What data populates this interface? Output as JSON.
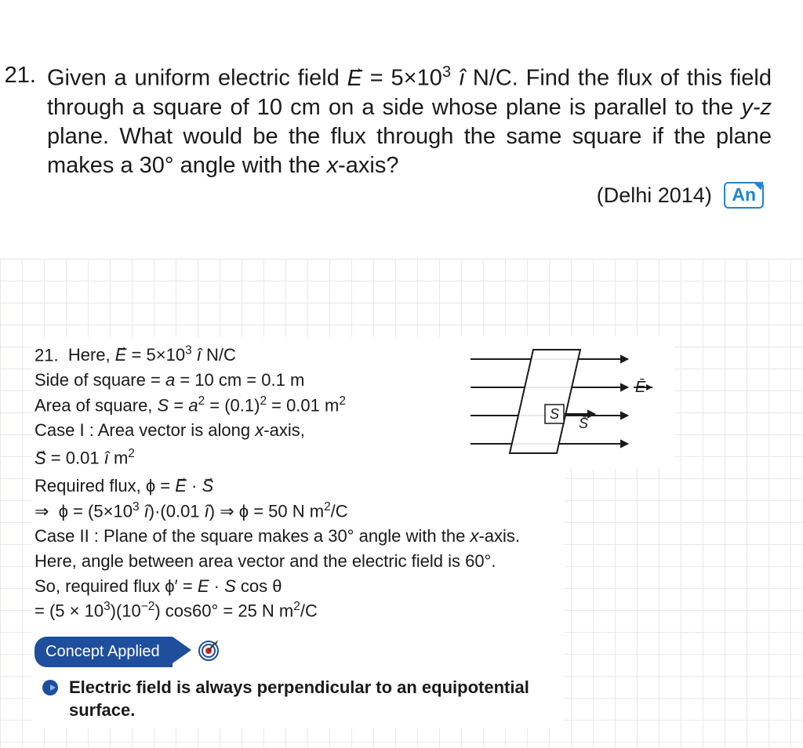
{
  "colors": {
    "text": "#1a1a1a",
    "accent_blue": "#2185d0",
    "concept_blue": "#1f4e9c",
    "grid_line": "#e8e8f0",
    "background": "#ffffff"
  },
  "question": {
    "number": "21.",
    "text_html": "Given a uniform electric field <span class='italic'><span class='vec-arrow'>E</span></span> = 5×10<sup>3</sup> <span class='italic'>î</span> N/C. Find the flux of this field through a square of 10 cm on a side whose plane is parallel to the <span class='italic'>y-z</span> plane. What would be the flux through the same square if the plane makes a 30° angle with the <span class='italic'>x</span>-axis?",
    "source": "(Delhi 2014)",
    "badge": "An",
    "fontsize_pt": 29
  },
  "solution": {
    "number": "21.",
    "lines": [
      "Here, <span class='italic'><span class='vec-arrow'>E</span></span> = 5×10<sup>3</sup> <span class='italic'>î</span> N/C",
      "Side of square = <span class='italic'>a</span> = 10 cm = 0.1 m",
      "Area of square, <span class='italic'>S</span> = <span class='italic'>a</span><sup>2</sup> = (0.1)<sup>2</sup> = 0.01 m<sup>2</sup>",
      "Case I : Area vector is along <span class='italic'>x</span>-axis,",
      "<span class='italic'><span class='vec-arrow'>S</span></span> = 0.01 <span class='italic'>î</span> m<sup>2</sup>",
      "Required flux, ϕ = <span class='italic'><span class='vec-arrow'>E</span></span> · <span class='italic'><span class='vec-arrow'>S</span></span>",
      "⇒&nbsp;&nbsp;ϕ = (5×10<sup>3</sup> <span class='italic'>î</span>)·(0.01 <span class='italic'>î</span>) ⇒ ϕ = 50 N m<sup>2</sup>/C",
      "Case II : Plane of the square makes a 30° angle with the <span class='italic'>x</span>-axis.",
      "Here, angle between area vector and the electric field is 60°.",
      "So, required flux ϕ′ = <span class='italic'>E</span> · <span class='italic'>S</span> cos θ",
      "= (5 × 10<sup>3</sup>)(10<sup>−2</sup>) cos60° = 25 N m<sup>2</sup>/C"
    ],
    "fontsize_pt": 22
  },
  "concept": {
    "label": "Concept Applied",
    "bullet": "Electric field is always perpendicular to an equipotential",
    "bullet2": "surface."
  },
  "diagram": {
    "type": "vector-surface-schematic",
    "labels": {
      "surface": "S",
      "area_vector": "S̄",
      "field": "Ē"
    },
    "stroke": "#1a1a1a",
    "stroke_width": 2,
    "field_lines": 4
  }
}
